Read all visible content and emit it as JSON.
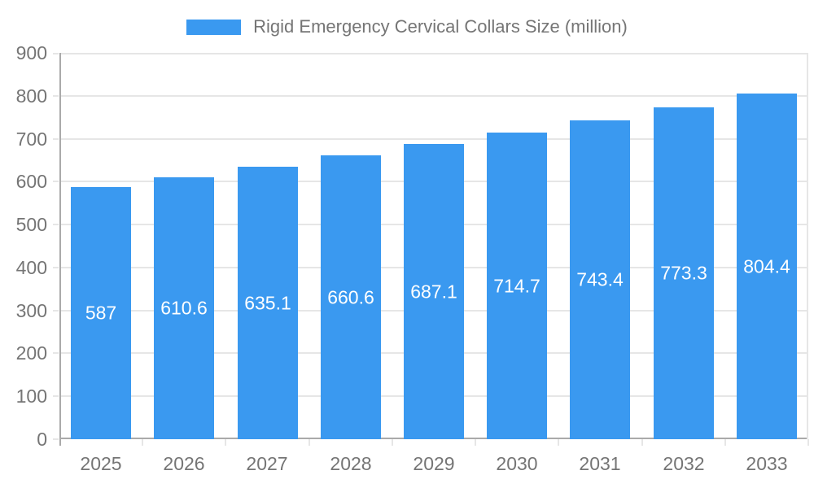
{
  "chart_data": {
    "type": "bar",
    "title": "Rigid Emergency Cervical Collars Size (million)",
    "categories": [
      "2025",
      "2026",
      "2027",
      "2028",
      "2029",
      "2030",
      "2031",
      "2032",
      "2033"
    ],
    "values": [
      587,
      610.6,
      635.1,
      660.6,
      687.1,
      714.7,
      743.4,
      773.3,
      804.4
    ],
    "value_labels": [
      "587",
      "610.6",
      "635.1",
      "660.6",
      "687.1",
      "714.7",
      "743.4",
      "773.3",
      "804.4"
    ],
    "xlabel": "",
    "ylabel": "",
    "ylim": [
      0,
      900
    ],
    "yticks": [
      0,
      100,
      200,
      300,
      400,
      500,
      600,
      700,
      800,
      900
    ],
    "grid": true,
    "legend_position": "top-center",
    "colors": {
      "bar": "#3A99F0",
      "bar_value_text": "#ffffff",
      "axis_text": "#757575",
      "gridline": "#e6e6e6",
      "axis_line": "#aaaaaa",
      "background": "#ffffff"
    }
  }
}
